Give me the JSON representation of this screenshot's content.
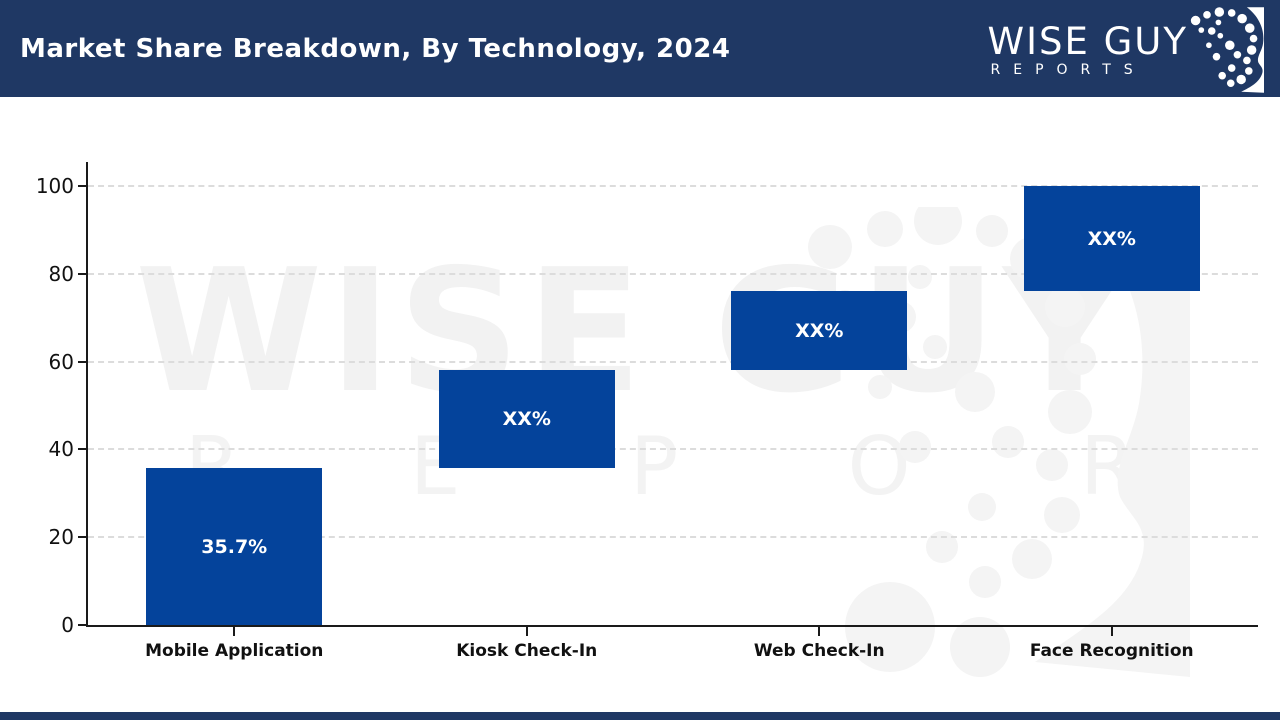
{
  "header": {
    "title": "Market Share Breakdown, By Technology, 2024",
    "bg_color": "#1F3864",
    "logo": {
      "line1": "WISE GUY",
      "line2": "REPORTS"
    }
  },
  "watermark": {
    "line1": "WISE GUY",
    "line2": "R E P O R T S"
  },
  "footer": {
    "bg_color": "#1F3864"
  },
  "chart_data": {
    "type": "bar",
    "subtype": "floating-waterfall",
    "title": "Market Share Breakdown, By Technology, 2024",
    "xlabel": "",
    "ylabel": "",
    "categories": [
      "Mobile Application",
      "Kiosk Check-In",
      "Web Check-In",
      "Face Recognition"
    ],
    "segments": [
      {
        "category": "Mobile Application",
        "start": 0,
        "end": 35.7,
        "label": "35.7%"
      },
      {
        "category": "Kiosk Check-In",
        "start": 35.7,
        "end": 58,
        "label": "XX%"
      },
      {
        "category": "Web Check-In",
        "start": 58,
        "end": 76,
        "label": "XX%"
      },
      {
        "category": "Face Recognition",
        "start": 76,
        "end": 100,
        "label": "XX%"
      }
    ],
    "yticks": [
      0,
      20,
      40,
      60,
      80,
      100
    ],
    "ylim": [
      0,
      105
    ],
    "grid": "horizontal dashed",
    "legend": "none",
    "bar_color": "#04439B",
    "bar_label_color": "#FFFFFF",
    "grid_color": "#DCDCDC",
    "axis_color": "#1A1A1A"
  }
}
